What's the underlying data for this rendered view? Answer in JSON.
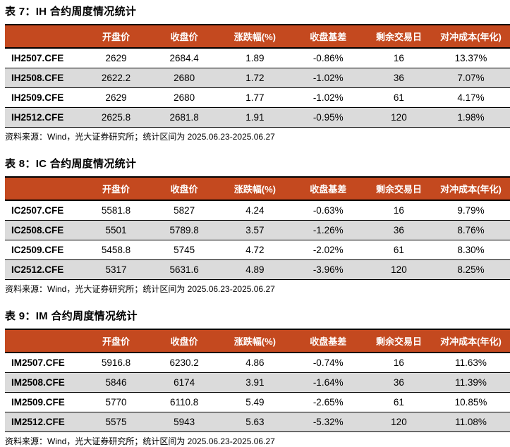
{
  "colors": {
    "header_bg": "#c4491f",
    "header_text": "#ffffff",
    "stripe_bg": "#dbdbdb",
    "border": "#000000",
    "body_text": "#000000"
  },
  "tables": [
    {
      "title": "表 7：IH 合约周度情况统计",
      "columns": [
        "",
        "开盘价",
        "收盘价",
        "涨跌幅(%)",
        "收盘基差",
        "剩余交易日",
        "对冲成本(年化)"
      ],
      "rows": [
        [
          "IH2507.CFE",
          "2629",
          "2684.4",
          "1.89",
          "-0.86%",
          "16",
          "13.37%"
        ],
        [
          "IH2508.CFE",
          "2622.2",
          "2680",
          "1.72",
          "-1.02%",
          "36",
          "7.07%"
        ],
        [
          "IH2509.CFE",
          "2629",
          "2680",
          "1.77",
          "-1.02%",
          "61",
          "4.17%"
        ],
        [
          "IH2512.CFE",
          "2625.8",
          "2681.8",
          "1.91",
          "-0.95%",
          "120",
          "1.98%"
        ]
      ],
      "source": "资料来源：Wind，光大证券研究所；统计区间为 2025.06.23-2025.06.27"
    },
    {
      "title": "表 8：IC 合约周度情况统计",
      "columns": [
        "",
        "开盘价",
        "收盘价",
        "涨跌幅(%)",
        "收盘基差",
        "剩余交易日",
        "对冲成本(年化)"
      ],
      "rows": [
        [
          "IC2507.CFE",
          "5581.8",
          "5827",
          "4.24",
          "-0.63%",
          "16",
          "9.79%"
        ],
        [
          "IC2508.CFE",
          "5501",
          "5789.8",
          "3.57",
          "-1.26%",
          "36",
          "8.76%"
        ],
        [
          "IC2509.CFE",
          "5458.8",
          "5745",
          "4.72",
          "-2.02%",
          "61",
          "8.30%"
        ],
        [
          "IC2512.CFE",
          "5317",
          "5631.6",
          "4.89",
          "-3.96%",
          "120",
          "8.25%"
        ]
      ],
      "source": "资料来源：Wind，光大证券研究所；统计区间为 2025.06.23-2025.06.27"
    },
    {
      "title": "表 9：IM 合约周度情况统计",
      "columns": [
        "",
        "开盘价",
        "收盘价",
        "涨跌幅(%)",
        "收盘基差",
        "剩余交易日",
        "对冲成本(年化)"
      ],
      "rows": [
        [
          "IM2507.CFE",
          "5916.8",
          "6230.2",
          "4.86",
          "-0.74%",
          "16",
          "11.63%"
        ],
        [
          "IM2508.CFE",
          "5846",
          "6174",
          "3.91",
          "-1.64%",
          "36",
          "11.39%"
        ],
        [
          "IM2509.CFE",
          "5770",
          "6110.8",
          "5.49",
          "-2.65%",
          "61",
          "10.85%"
        ],
        [
          "IM2512.CFE",
          "5575",
          "5943",
          "5.63",
          "-5.32%",
          "120",
          "11.08%"
        ]
      ],
      "source": "资料来源：Wind，光大证券研究所；统计区间为 2025.06.23-2025.06.27"
    }
  ]
}
